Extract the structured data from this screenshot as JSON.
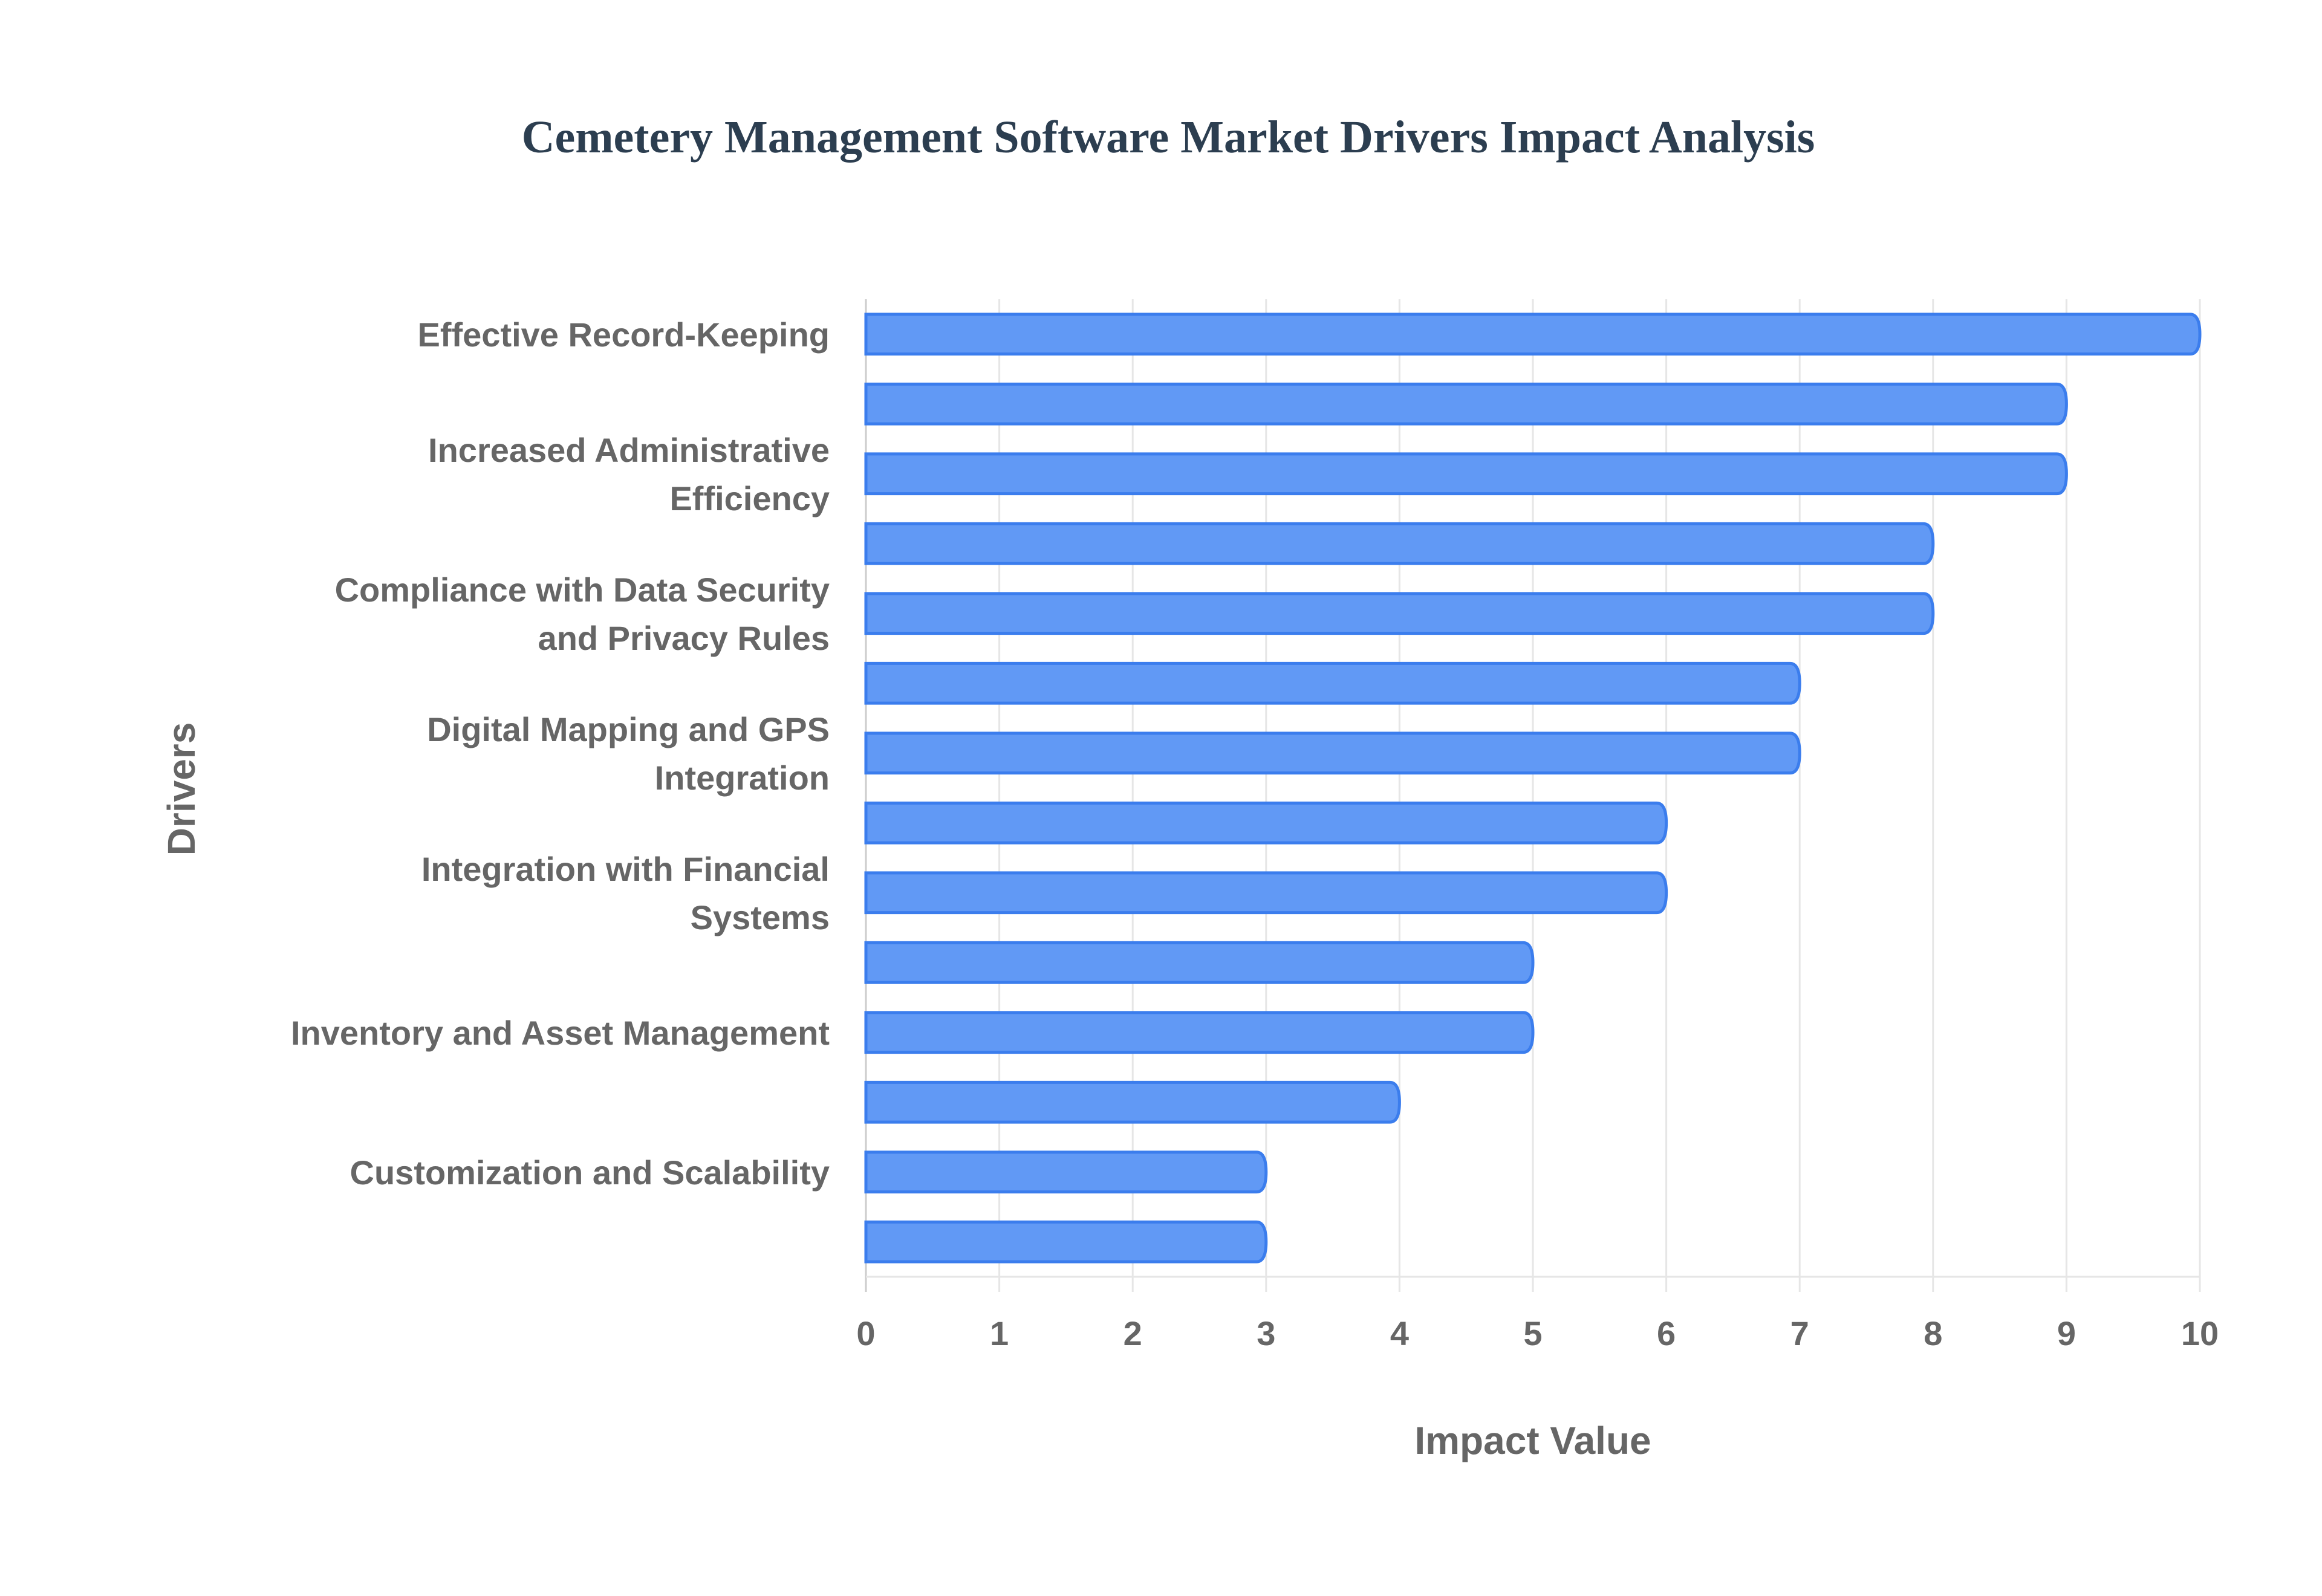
{
  "chart_data": {
    "type": "bar",
    "orientation": "horizontal",
    "title": "Cemetery Management Software Market Drivers Impact Analysis",
    "xlabel": "Impact Value",
    "ylabel": "Drivers",
    "xlim": [
      0,
      10
    ],
    "xticks": [
      "0",
      "1",
      "2",
      "3",
      "4",
      "5",
      "6",
      "7",
      "8",
      "9",
      "10"
    ],
    "grid": true,
    "bar_color": "#6199f5",
    "bar_border_color": "#3b7ded",
    "categories": [
      [
        "Effective Record-Keeping"
      ],
      [],
      [
        "Increased Administrative",
        "Efficiency"
      ],
      [],
      [
        "Compliance with Data Security",
        "and Privacy Rules"
      ],
      [],
      [
        "Digital Mapping and GPS",
        "Integration"
      ],
      [],
      [
        "Integration with Financial",
        "Systems"
      ],
      [],
      [
        "Inventory and Asset Management"
      ],
      [],
      [
        "Customization and Scalability"
      ],
      []
    ],
    "values": [
      10,
      9,
      9,
      8,
      8,
      7,
      7,
      6,
      6,
      5,
      5,
      4,
      3,
      3
    ]
  }
}
